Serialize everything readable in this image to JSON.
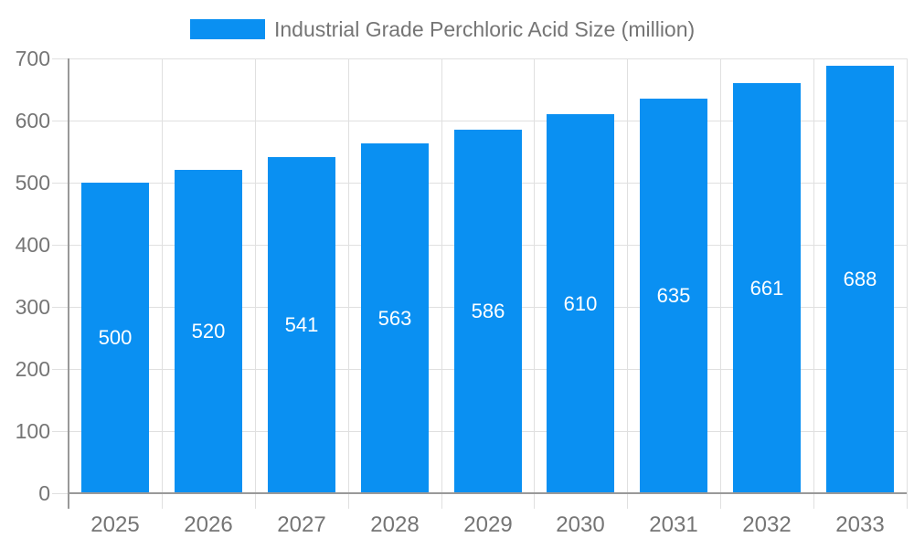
{
  "chart_data": {
    "type": "bar",
    "title": "Industrial Grade Perchloric Acid Size (million)",
    "categories": [
      "2025",
      "2026",
      "2027",
      "2028",
      "2029",
      "2030",
      "2031",
      "2032",
      "2033"
    ],
    "values": [
      500,
      520,
      541,
      563,
      586,
      610,
      635,
      661,
      688
    ],
    "xlabel": "",
    "ylabel": "",
    "ylim": [
      0,
      700
    ],
    "yticks": [
      0,
      100,
      200,
      300,
      400,
      500,
      600,
      700
    ],
    "grid": true,
    "legend_position": "top",
    "value_label_position": "inside-center",
    "colors": {
      "bar": "#0a90f2",
      "gridline": "#e0e0e0",
      "axis_line": "#999999",
      "tick_label": "#757575",
      "legend_text": "#757575",
      "value_label": "#ffffff",
      "background": "#ffffff"
    }
  }
}
